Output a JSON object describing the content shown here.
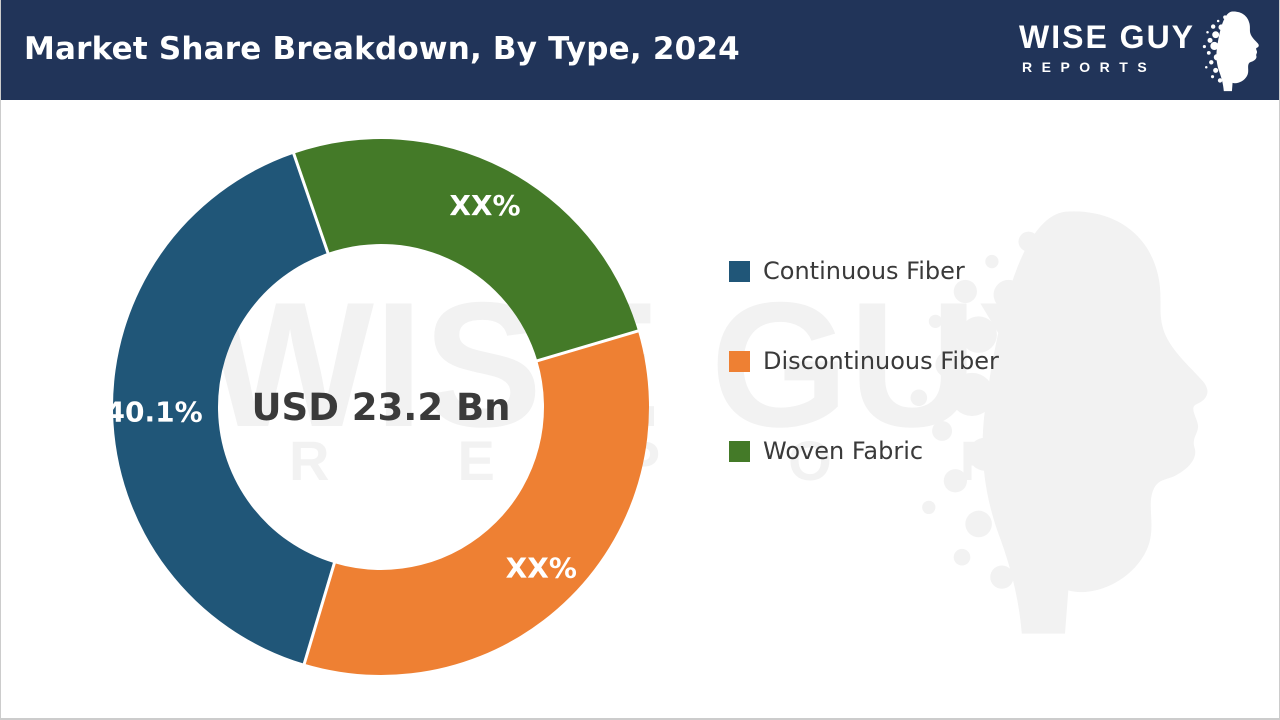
{
  "header": {
    "title": "Market Share Breakdown, By Type, 2024",
    "bg_color": "#213459",
    "logo": {
      "primary": "WISE GUY",
      "secondary": "REPORTS"
    }
  },
  "watermark": {
    "primary": "WISE GUY",
    "secondary": "REPORTS",
    "color": "#F2F2F2"
  },
  "chart_data": {
    "type": "pie",
    "subtype": "donut",
    "title": "Market Share Breakdown, By Type, 2024",
    "center_label": "USD 23.2 Bn",
    "center_label_color": "#3A3A3A",
    "slice_label_color": "#FFFFFF",
    "start_angle_deg": 109,
    "direction": "counterclockwise",
    "inner_radius_ratio": 0.61,
    "legend_position": "right",
    "slices": [
      {
        "name": "Continuous Fiber",
        "value": 40.1,
        "label": "40.1%",
        "color": "#205678"
      },
      {
        "name": "Discontinuous Fiber",
        "value": 34.2,
        "label": "XX%",
        "color": "#EE8033"
      },
      {
        "name": "Woven Fabric",
        "value": 25.7,
        "label": "XX%",
        "color": "#447A28"
      }
    ]
  },
  "legend": {
    "items": [
      {
        "label": "Continuous Fiber",
        "color": "#205678"
      },
      {
        "label": "Discontinuous Fiber",
        "color": "#EE8033"
      },
      {
        "label": "Woven Fabric",
        "color": "#447A28"
      }
    ]
  }
}
